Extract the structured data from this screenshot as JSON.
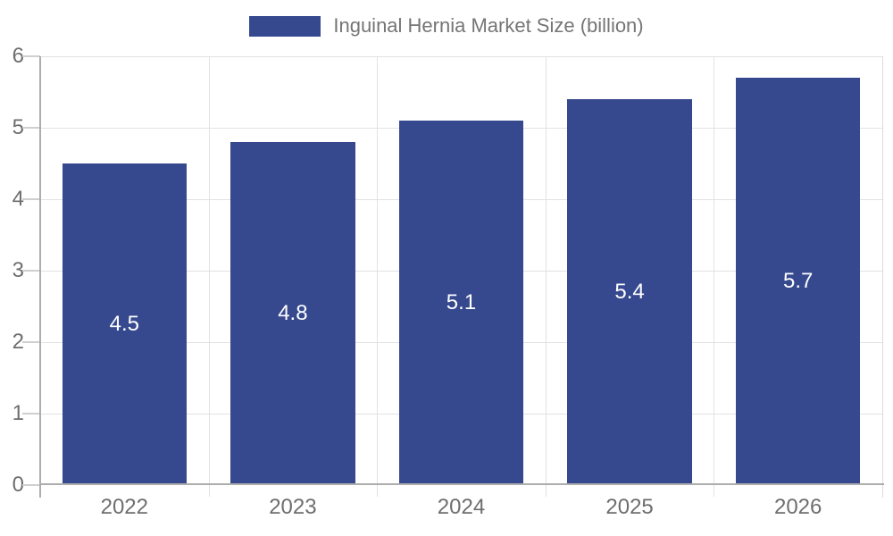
{
  "legend": {
    "label": "Inguinal Hernia Market Size (billion)"
  },
  "chart_data": {
    "type": "bar",
    "title": "Inguinal Hernia Market Size (billion)",
    "series_name": "Inguinal Hernia Market Size (billion)",
    "categories": [
      "2022",
      "2023",
      "2024",
      "2025",
      "2026"
    ],
    "values": [
      4.5,
      4.8,
      5.1,
      5.4,
      5.7
    ],
    "value_labels": [
      "4.5",
      "4.8",
      "5.1",
      "5.4",
      "5.7"
    ],
    "xlabel": "",
    "ylabel": "",
    "ylim": [
      0,
      6
    ],
    "yticks": [
      0,
      1,
      2,
      3,
      4,
      5,
      6
    ],
    "ytick_labels": [
      "0",
      "1",
      "2",
      "3",
      "4",
      "5",
      "6"
    ],
    "grid": true,
    "legend_position": "top",
    "colors": {
      "bar": "#36498F",
      "value_label": "#FFFFFF",
      "grid": "#E2E2E2",
      "axis_line": "#ADADAD",
      "tick_mark": "#CFCFCF",
      "right_spine": "#DCDCDC",
      "tick_label": "#6E6E6E",
      "legend_text": "#757575"
    }
  }
}
